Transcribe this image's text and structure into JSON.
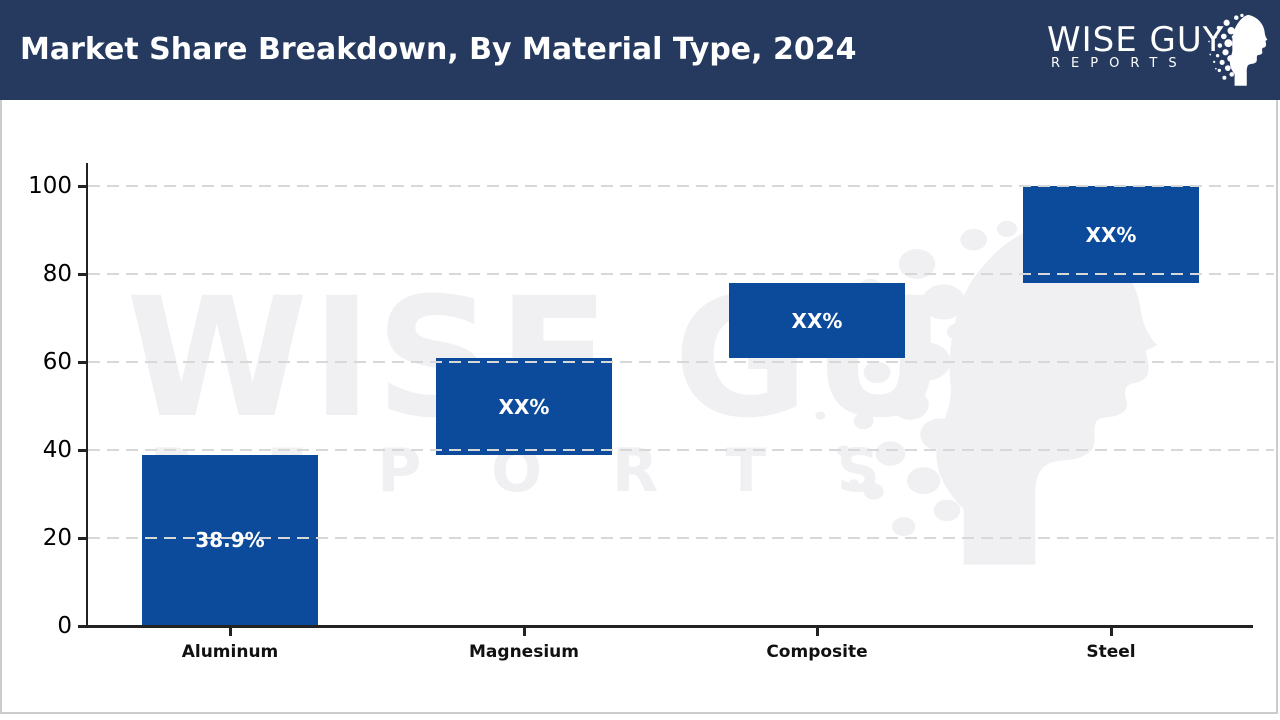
{
  "header": {
    "title": "Market Share Breakdown, By Material Type, 2024",
    "logo": {
      "name": "WISE GUY",
      "sub": "REPORTS"
    }
  },
  "watermark": {
    "line1": "WISE GUY",
    "line2": "REPORTS"
  },
  "chart_data": {
    "type": "bar",
    "subtype": "waterfall",
    "title": "Market Share Breakdown, By Material Type, 2024",
    "categories": [
      "Aluminum",
      "Magnesium",
      "Composite",
      "Steel"
    ],
    "series": [
      {
        "name": "Market share (%)",
        "segments": [
          {
            "category": "Aluminum",
            "start": 0,
            "end": 38.9,
            "label": "38.9%"
          },
          {
            "category": "Magnesium",
            "start": 38.9,
            "end": 60.8,
            "label": "XX%"
          },
          {
            "category": "Composite",
            "start": 60.8,
            "end": 77.9,
            "label": "XX%"
          },
          {
            "category": "Steel",
            "start": 77.9,
            "end": 100,
            "label": "XX%"
          }
        ]
      }
    ],
    "xlabel": "",
    "ylabel": "",
    "ylim": [
      0,
      100
    ],
    "yticks": [
      0,
      20,
      40,
      60,
      80,
      100
    ],
    "grid": "horizontal-dashed",
    "legend": "none",
    "colors": {
      "bar": "#0c4a9c",
      "bar_label": "#ffffff",
      "header_bg": "#253a5e",
      "grid": "#d8d8d8",
      "axis": "#222222",
      "watermark": "#f0f0f3",
      "card_border": "#cccccc"
    }
  }
}
